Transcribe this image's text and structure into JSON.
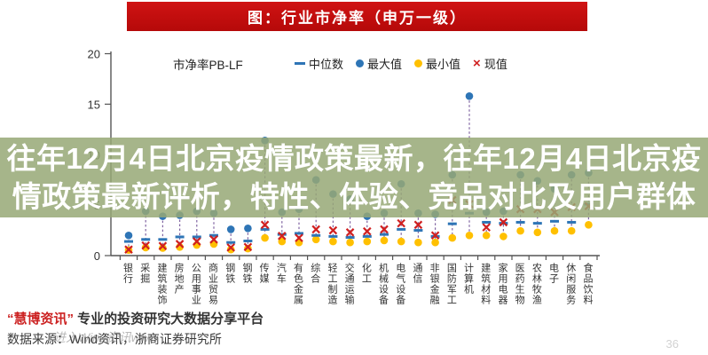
{
  "header": {
    "title": "图：行业市净率（申万一级）"
  },
  "overlay": {
    "line1": "往年12月4日北京疫情政策最新，往年12月4日北京疫",
    "line2": "情政策最新评析，特性、体验、竞品对比及用户群体"
  },
  "chart_data": {
    "type": "scatter",
    "title": "图：行业市净率（申万一级）",
    "axis_title": "市净率PB-LF",
    "ylabel": "",
    "xlabel": "",
    "ylim": [
      0,
      20
    ],
    "y_ticks": [
      0,
      5,
      10,
      15,
      20
    ],
    "grid": false,
    "legend_position": "top",
    "connector_color": "#8064a2",
    "categories": [
      "银行",
      "采掘",
      "建筑装饰",
      "房地产",
      "公用事业",
      "商业贸易",
      "钢铁",
      "钢铁",
      "传媒",
      "汽车",
      "有色金属",
      "综合",
      "轻工制造",
      "交通运输",
      "化工",
      "机械设备",
      "电气设备",
      "通信",
      "非银金融",
      "国防军工",
      "计算机",
      "建筑材料",
      "家用电器",
      "医药生物",
      "农林牧渔",
      "电子",
      "休闲服务",
      "食品饮料"
    ],
    "series": [
      {
        "name": "中位数",
        "marker": "dash",
        "color": "#2e75b6",
        "values": [
          1.4,
          1.6,
          1.6,
          1.85,
          1.85,
          2.0,
          1.3,
          1.45,
          2.6,
          2.1,
          2.2,
          2.0,
          1.9,
          1.8,
          1.9,
          2.1,
          2.6,
          2.5,
          1.9,
          3.15,
          4.2,
          3.3,
          3.2,
          3.3,
          3.2,
          3.4,
          3.3,
          5.1
        ]
      },
      {
        "name": "最大值",
        "marker": "dot",
        "color": "#2e75b6",
        "values": [
          2.0,
          4.4,
          3.9,
          4.0,
          4.4,
          4.2,
          2.6,
          2.7,
          11.4,
          4.3,
          4.6,
          7.5,
          6.1,
          5.6,
          3.9,
          4.2,
          7.1,
          4.2,
          4.1,
          8.0,
          15.8,
          4.3,
          4.4,
          8.0,
          7.4,
          6.6,
          8.0,
          8.2
        ]
      },
      {
        "name": "最小值",
        "marker": "dot",
        "color": "#ffc000",
        "values": [
          0.55,
          0.8,
          0.75,
          0.85,
          1.05,
          1.15,
          0.6,
          0.7,
          1.75,
          1.4,
          1.3,
          1.6,
          1.4,
          1.3,
          1.4,
          1.5,
          1.4,
          1.3,
          1.3,
          1.75,
          2.0,
          2.0,
          1.9,
          2.45,
          2.3,
          2.45,
          2.45,
          3.05
        ]
      },
      {
        "name": "现值",
        "marker": "x",
        "color": "#d02020",
        "values": [
          0.6,
          1.0,
          0.95,
          1.15,
          1.4,
          1.6,
          0.8,
          0.85,
          3.05,
          1.95,
          1.75,
          2.6,
          2.5,
          2.3,
          2.4,
          2.6,
          3.2,
          3.05,
          2.0,
          5.5,
          5.1,
          2.8,
          3.3,
          4.6,
          4.6,
          4.3,
          4.8,
          4.9
        ]
      }
    ]
  },
  "footer": {
    "brand": "“慧博资讯”",
    "brand_desc": " 专业的投资研究大数据分享平台",
    "source": "数据来源：Wind资讯，浙商证券研究所",
    "watermark": "进入Wind资讯www",
    "page_number": "36"
  }
}
